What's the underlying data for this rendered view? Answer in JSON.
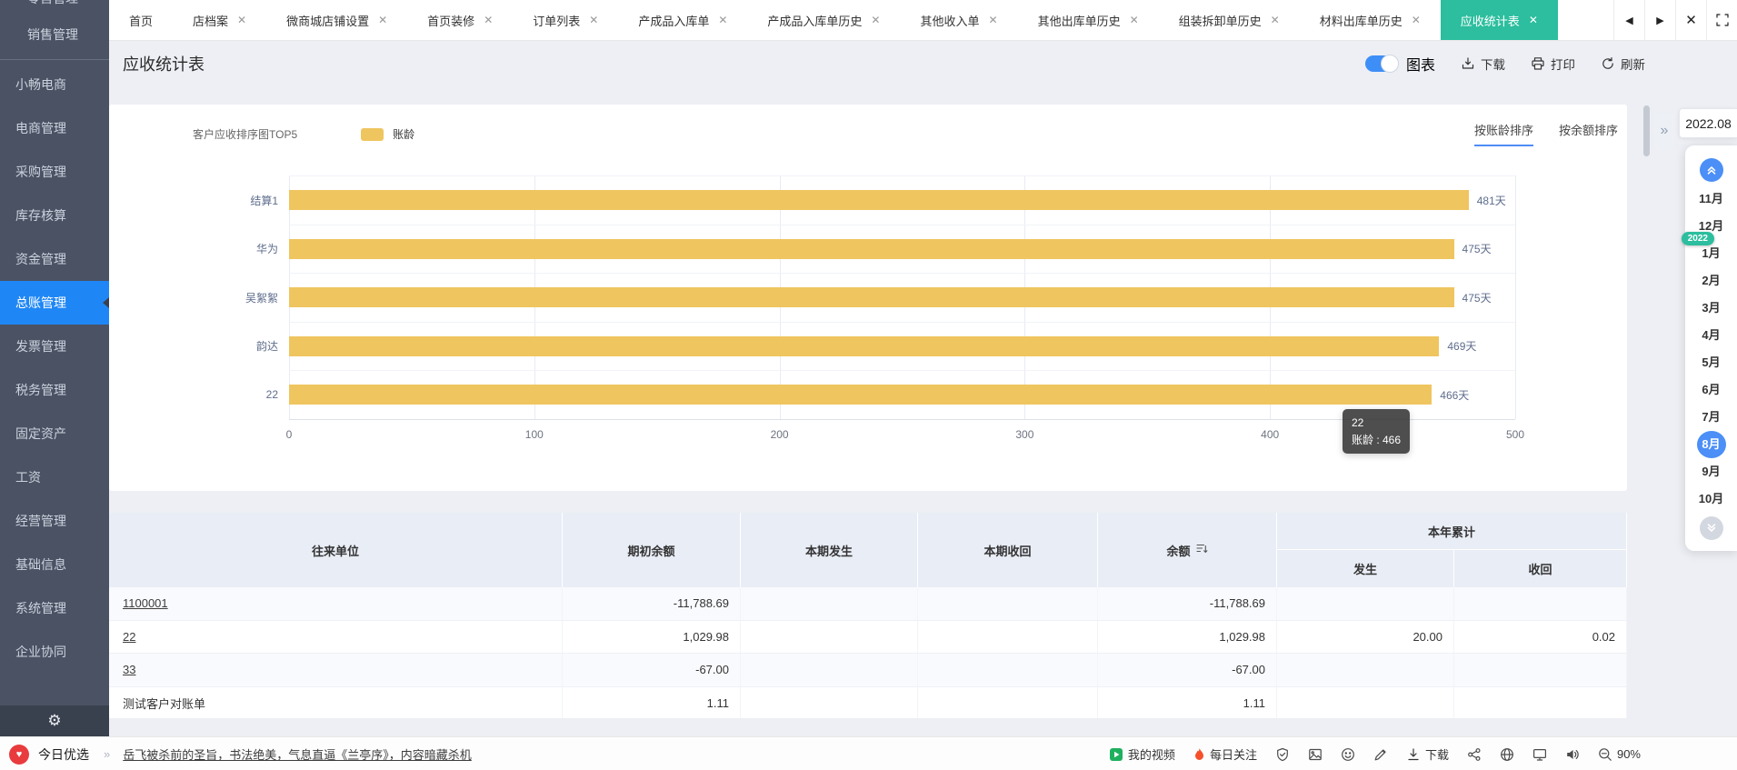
{
  "colors": {
    "active_tab": "#2cbe9e",
    "sidebar_active": "#1f87f5",
    "bar": "#efc55f",
    "month_selected": "#4b8ff7",
    "year_badge": "#2cbe9e",
    "toggle_on": "#3e8ef7"
  },
  "sidebar": {
    "items": [
      {
        "label": "零售管理",
        "clipped": true,
        "indent": true
      },
      {
        "label": "销售管理",
        "indent": true,
        "divider_after": true
      },
      {
        "label": "小畅电商"
      },
      {
        "label": "电商管理"
      },
      {
        "label": "采购管理"
      },
      {
        "label": "库存核算"
      },
      {
        "label": "资金管理"
      },
      {
        "label": "总账管理",
        "active": true
      },
      {
        "label": "发票管理"
      },
      {
        "label": "税务管理"
      },
      {
        "label": "固定资产"
      },
      {
        "label": "工资"
      },
      {
        "label": "经营管理"
      },
      {
        "label": "基础信息"
      },
      {
        "label": "系统管理"
      },
      {
        "label": "企业协同"
      }
    ],
    "gear_icon": "gear-icon"
  },
  "tabs": {
    "items": [
      {
        "label": "首页",
        "closable": false
      },
      {
        "label": "店档案",
        "closable": true
      },
      {
        "label": "微商城店铺设置",
        "closable": true
      },
      {
        "label": "首页装修",
        "closable": true
      },
      {
        "label": "订单列表",
        "closable": true
      },
      {
        "label": "产成品入库单",
        "closable": true
      },
      {
        "label": "产成品入库单历史",
        "closable": true
      },
      {
        "label": "其他收入单",
        "closable": true
      },
      {
        "label": "其他出库单历史",
        "closable": true
      },
      {
        "label": "组装拆卸单历史",
        "closable": true
      },
      {
        "label": "材料出库单历史",
        "closable": true
      },
      {
        "label": "应收统计表",
        "closable": true,
        "active": true
      }
    ],
    "nav_icons": [
      "prev-tab-icon",
      "next-tab-icon",
      "close-tabs-icon",
      "fullscreen-icon"
    ]
  },
  "header": {
    "title": "应收统计表",
    "chart_toggle": {
      "state": "on",
      "label": "图表"
    },
    "actions": [
      {
        "icon": "download-icon",
        "label": "下载"
      },
      {
        "icon": "print-icon",
        "label": "打印"
      },
      {
        "icon": "refresh-icon",
        "label": "刷新"
      }
    ]
  },
  "chart": {
    "sorters": [
      {
        "label": "按账龄排序",
        "active": true
      },
      {
        "label": "按余额排序",
        "active": false
      }
    ]
  },
  "chart_data": {
    "type": "bar",
    "orientation": "horizontal",
    "title": "客户应收排序图TOP5",
    "legend": [
      "账龄"
    ],
    "categories": [
      "结算1",
      "华为",
      "吴絮絮",
      "韵达",
      "22"
    ],
    "values": [
      481,
      475,
      475,
      469,
      466
    ],
    "value_suffix": "天",
    "xlim": [
      0,
      500
    ],
    "x_ticks": [
      0,
      100,
      200,
      300,
      400,
      500
    ],
    "bar_color": "#efc55f",
    "grid": true,
    "legend_position": "top",
    "tooltip": {
      "title": "22",
      "label": "账龄",
      "value": 466
    }
  },
  "date_panel": {
    "current": "2022.08",
    "year_badge": "2022",
    "months": [
      "11月",
      "12月",
      "1月",
      "2月",
      "3月",
      "4月",
      "5月",
      "6月",
      "7月",
      "8月",
      "9月",
      "10月"
    ],
    "selected": "8月",
    "expander_icon": "chevrons-right-icon",
    "scroll_up_icon": "chevrons-up-icon",
    "scroll_down_icon": "chevrons-down-icon"
  },
  "table": {
    "headers": [
      "往来单位",
      "期初余额",
      "本期发生",
      "本期收回",
      "余额"
    ],
    "group_header": "本年累计",
    "sub_headers": [
      "发生",
      "收回"
    ],
    "sort_icon": "sort-icon",
    "rows": [
      {
        "name": "1100001",
        "link": true,
        "values": [
          "-11,788.69",
          "",
          "",
          "-11,788.69",
          "",
          ""
        ]
      },
      {
        "name": "22",
        "link": true,
        "values": [
          "1,029.98",
          "",
          "",
          "1,029.98",
          "20.00",
          "0.02"
        ]
      },
      {
        "name": "33",
        "link": true,
        "values": [
          "-67.00",
          "",
          "",
          "-67.00",
          "",
          ""
        ]
      },
      {
        "name": "测试客户对账单",
        "link": false,
        "values": [
          "1.11",
          "",
          "",
          "1.11",
          "",
          ""
        ]
      }
    ]
  },
  "statusbar": {
    "brand": {
      "icon": "heart-icon",
      "label": "今日优选"
    },
    "collapse_icon": "chevrons-right-icon",
    "news": "岳飞被杀前的圣旨，书法绝美，气息直逼《兰亭序》，内容暗藏杀机",
    "items": [
      {
        "icon": "play-icon",
        "label": "我的视频"
      },
      {
        "icon": "flame-icon",
        "label": "每日关注"
      },
      {
        "icon": "shield-icon"
      },
      {
        "icon": "image-icon"
      },
      {
        "icon": "emoji-icon"
      },
      {
        "icon": "signature-icon"
      },
      {
        "icon": "download-arrow-icon",
        "label": "下载"
      },
      {
        "icon": "share-icon"
      },
      {
        "icon": "globe-icon"
      },
      {
        "icon": "monitor-icon"
      },
      {
        "icon": "speaker-icon"
      },
      {
        "icon": "zoom-out-icon",
        "label": "90%"
      }
    ]
  }
}
